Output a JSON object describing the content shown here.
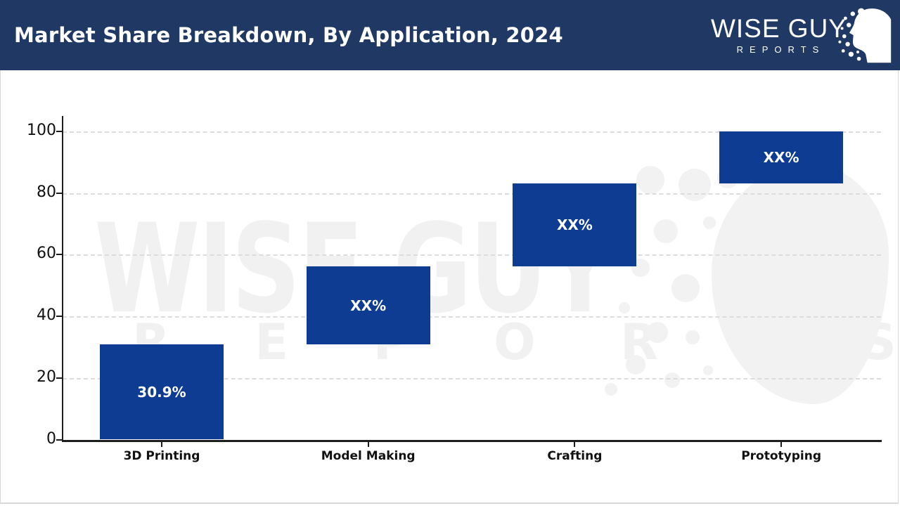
{
  "header": {
    "title": "Market Share Breakdown, By Application, 2024",
    "logo": {
      "line1": "WISE GUY",
      "line2": "REPORTS"
    }
  },
  "watermark": {
    "line1": "WISE GUY",
    "line2": "R E P O R T S"
  },
  "colors": {
    "header_bg": "#1f3864",
    "bar": "#0d3c92",
    "bar_label": "#ffffff",
    "axis": "#1c1c1c",
    "gridline": "#dcdcdc",
    "watermark": "#f1f1f1"
  },
  "chart_data": {
    "type": "bar",
    "subtype": "waterfall-floating-bars",
    "title": "Market Share Breakdown, By Application, 2024",
    "xlabel": "",
    "ylabel": "",
    "categories": [
      "3D Printing",
      "Model Making",
      "Crafting",
      "Prototyping"
    ],
    "bars": [
      {
        "category": "3D Printing",
        "start": 0,
        "end": 30.9,
        "label": "30.9%"
      },
      {
        "category": "Model Making",
        "start": 30.9,
        "end": 56.1,
        "label": "XX%"
      },
      {
        "category": "Crafting",
        "start": 56.1,
        "end": 83.2,
        "label": "XX%"
      },
      {
        "category": "Prototyping",
        "start": 83.2,
        "end": 100,
        "label": "XX%"
      }
    ],
    "yticks": [
      0,
      20,
      40,
      60,
      80,
      100
    ],
    "ylim": [
      0,
      105
    ],
    "grid": "horizontal-dashed",
    "legend": "none"
  }
}
